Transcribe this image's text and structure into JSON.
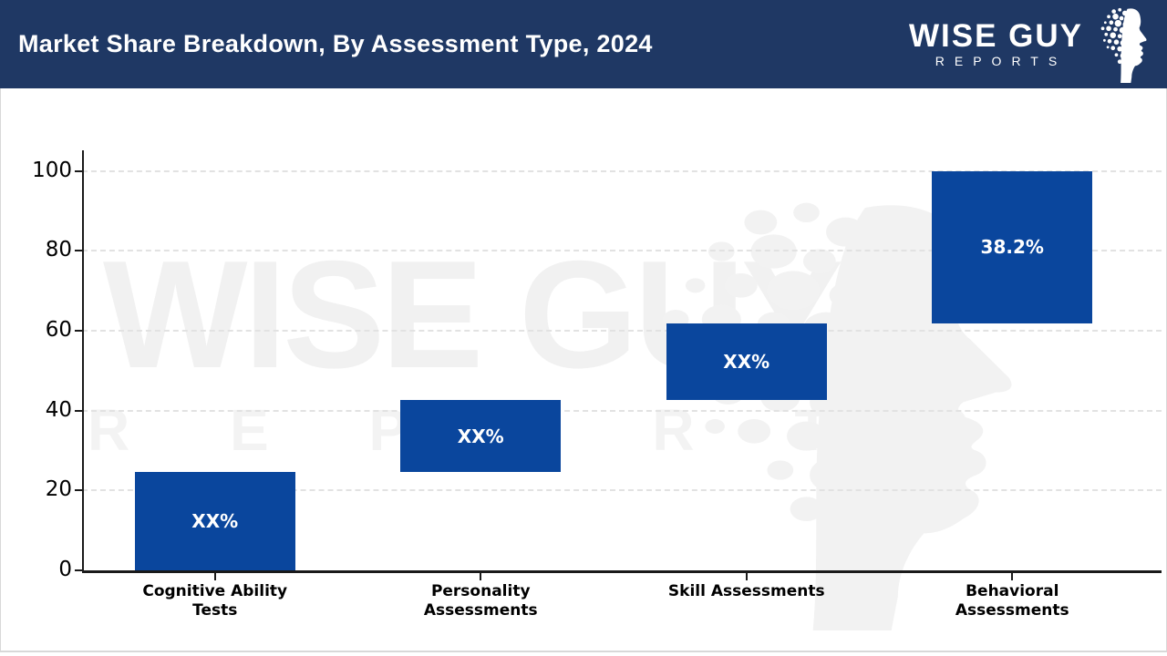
{
  "header": {
    "title": "Market Share Breakdown, By Assessment Type, 2024",
    "logo": {
      "line1": "WISE GUY",
      "line2": "REPORTS",
      "icon": "face-profile-dots-icon"
    },
    "bg_color": "#1f3864"
  },
  "watermark": {
    "line1": "WISE GUY",
    "line2": "R E P O R T S"
  },
  "chart_data": {
    "type": "bar",
    "subtype": "waterfall-stacked-cascade",
    "title": "Market Share Breakdown, By Assessment Type, 2024",
    "categories": [
      "Cognitive Ability Tests",
      "Personality Assessments",
      "Skill Assessments",
      "Behavioral Assessments"
    ],
    "series": [
      {
        "name": "Market share (%)",
        "segments": [
          {
            "category": "Cognitive Ability Tests",
            "start": 0,
            "end": 24.6,
            "height": 24.6,
            "label": "XX%"
          },
          {
            "category": "Personality Assessments",
            "start": 24.6,
            "end": 42.6,
            "height": 18.0,
            "label": "XX%"
          },
          {
            "category": "Skill Assessments",
            "start": 42.6,
            "end": 61.8,
            "height": 19.2,
            "label": "XX%"
          },
          {
            "category": "Behavioral Assessments",
            "start": 61.8,
            "end": 100,
            "height": 38.2,
            "label": "38.2%",
            "value": 38.2
          }
        ]
      }
    ],
    "xlabel": "",
    "ylabel": "",
    "ylim": [
      0,
      100
    ],
    "y_ticks": [
      0,
      20,
      40,
      60,
      80,
      100
    ],
    "grid": "horizontal dashed gridlines at each y tick",
    "legend": "none",
    "bar_color": "#0a469d",
    "bar_label_color": "#ffffff",
    "axis_color": "#1a1a1a"
  }
}
